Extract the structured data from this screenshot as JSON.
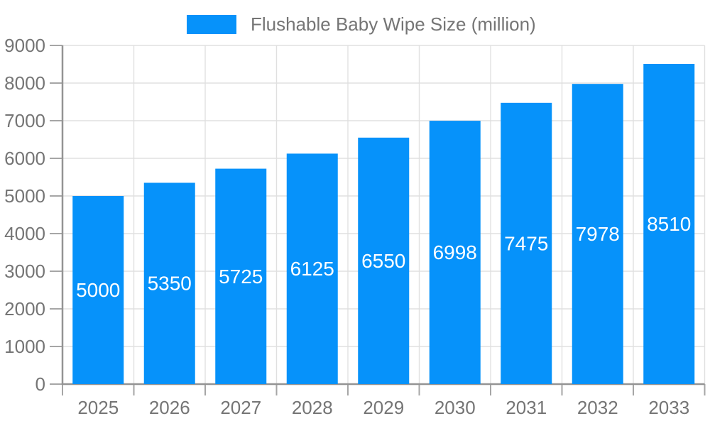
{
  "chart_data": {
    "type": "bar",
    "title": "Flushable Baby Wipe Size (million)",
    "legend": [
      "Flushable Baby Wipe Size (million)"
    ],
    "legend_position": "top",
    "categories": [
      "2025",
      "2026",
      "2027",
      "2028",
      "2029",
      "2030",
      "2031",
      "2032",
      "2033"
    ],
    "values": [
      5000,
      5350,
      5725,
      6125,
      6550,
      6998,
      7475,
      7978,
      8510
    ],
    "xlabel": "",
    "ylabel": "",
    "ylim": [
      0,
      9000
    ],
    "ytick_step": 1000,
    "yticks": [
      0,
      1000,
      2000,
      3000,
      4000,
      5000,
      6000,
      7000,
      8000,
      9000
    ],
    "grid": true,
    "colors": {
      "bar": "#0692FA",
      "value_label": "#ffffff",
      "axis_label": "#757575",
      "gridline": "#e0e0e0",
      "axis_line": "#949494",
      "tick": "#a6a6a6",
      "background": "#ffffff"
    }
  }
}
